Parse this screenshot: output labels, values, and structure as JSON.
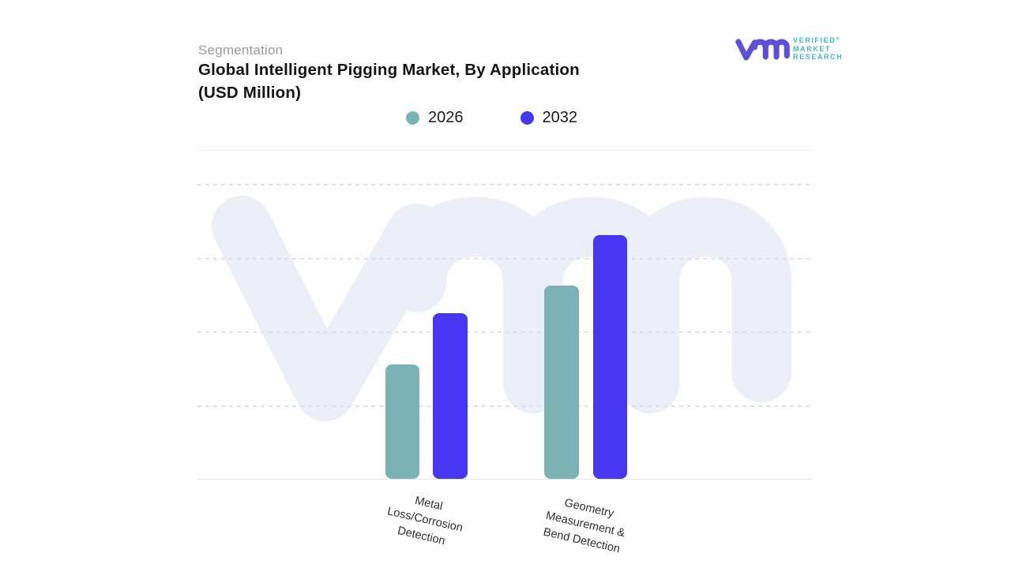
{
  "header": {
    "eyebrow": "Segmentation",
    "title_line1": "Global Intelligent Pigging Market, By Application",
    "title_line2": "(USD Million)"
  },
  "logo": {
    "name": "Verified Market Research",
    "monogram": "vmr",
    "monogram_color": "#5C50D9",
    "wordmark_lines": [
      "VERIFIED",
      "MARKET",
      "RESEARCH"
    ],
    "registered_mark": "®",
    "wordmark_color": "#3EBBB5"
  },
  "legend": {
    "position": "top-center",
    "items": [
      {
        "label": "2026",
        "color": "#7BB2B4"
      },
      {
        "label": "2032",
        "color": "#4837F0"
      }
    ]
  },
  "chart_data": {
    "type": "bar",
    "title": "Global Intelligent Pigging Market, By Application (USD Million)",
    "unit": "USD Million",
    "categories": [
      "Metal Loss/Corrosion Detection",
      "Geometry Measurement & Bend Detection"
    ],
    "category_label_lines": [
      [
        "Metal",
        "Loss/Corrosion",
        "Detection"
      ],
      [
        "Geometry",
        "Measurement &",
        "Bend Detection"
      ]
    ],
    "series": [
      {
        "name": "2026",
        "color": "#7BB2B4",
        "values_pct_of_axis": [
          38.8,
          65.5
        ],
        "values_gridline_units": [
          1.55,
          2.62
        ]
      },
      {
        "name": "2032",
        "color": "#4837F0",
        "values_pct_of_axis": [
          56.1,
          82.6
        ],
        "values_gridline_units": [
          2.24,
          3.3
        ]
      }
    ],
    "xlabel": "",
    "ylabel": "",
    "y_axis": {
      "tick_labels_visible": false,
      "gridline_count": 4,
      "gridline_style": "dashed",
      "baseline_style": "solid",
      "ylim_gridline_units": [
        0,
        4
      ]
    },
    "grid": true,
    "legend_position": "top-center",
    "note": "Y-axis shows no numeric tick labels; bar values are estimated relative to the dashed gridlines (top gridline = 4 units = 100% of axis height)."
  },
  "watermark": {
    "name": "vmr-monogram",
    "color": "#EDEFF8"
  }
}
